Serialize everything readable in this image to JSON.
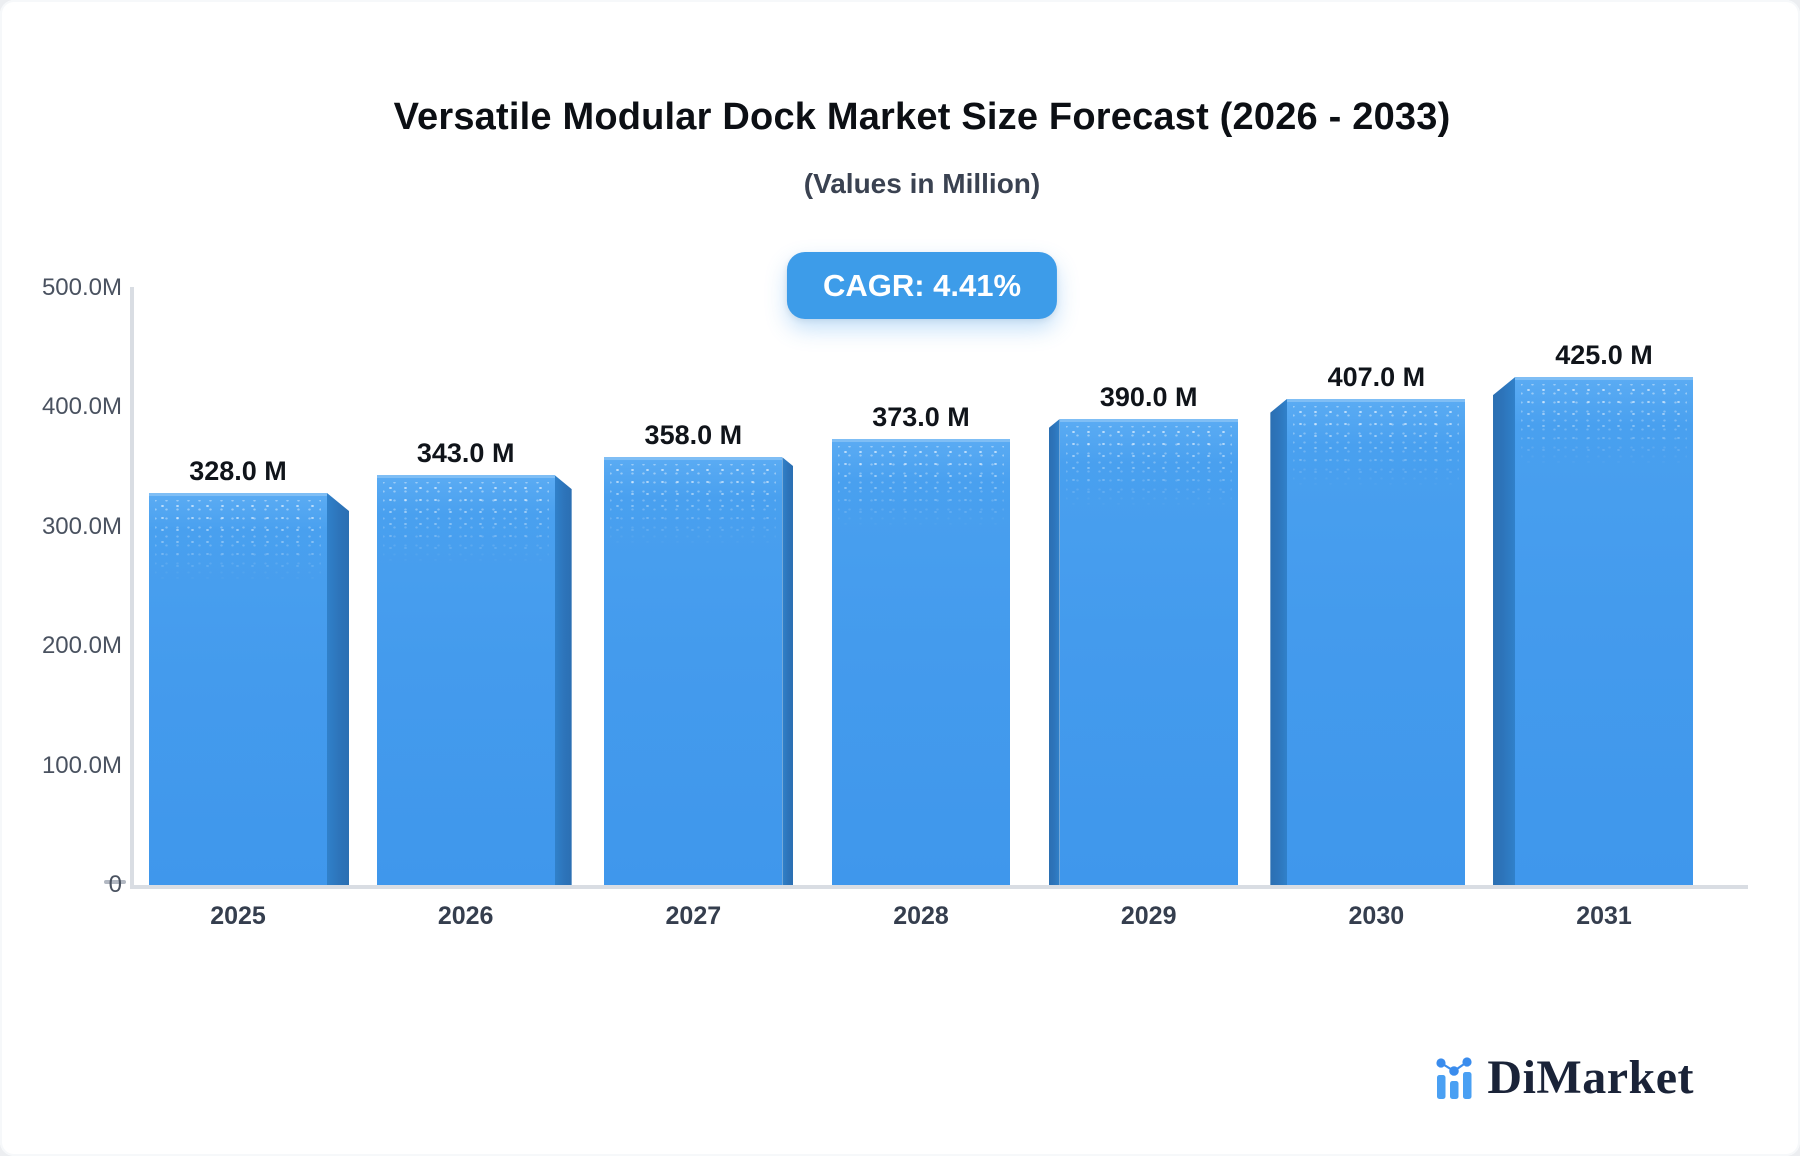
{
  "header": {
    "title": "Versatile Modular Dock Market Size Forecast (2026 - 2033)",
    "subtitle": "(Values in Million)",
    "cagr_badge": "CAGR: 4.41%"
  },
  "brand": {
    "name": "DiMarket",
    "icon": "mini-bar-line-chart-logo"
  },
  "colors": {
    "accent_blue": "#3d9ce9",
    "bar_face": "#459ded",
    "bar_face_top": "#5aabf3",
    "bar_side": "#2d74ba",
    "axis_gray": "#d9dde3",
    "value_label": "#10141a",
    "category_label": "#353e4e",
    "tick_label": "#4a5260",
    "logo_text": "#1a2338",
    "logo_blue": "#4aa0f3"
  },
  "chart_data": {
    "type": "bar",
    "title": "Versatile Modular Dock Market Size Forecast (2026 - 2033)",
    "subtitle": "(Values in Million)",
    "annotation": "CAGR: 4.41%",
    "categories": [
      "2025",
      "2026",
      "2027",
      "2028",
      "2029",
      "2030",
      "2031"
    ],
    "values": [
      328,
      343,
      358,
      373,
      390,
      407,
      425
    ],
    "value_labels": [
      "328.0 M",
      "343.0 M",
      "358.0 M",
      "373.0 M",
      "390.0 M",
      "407.0 M",
      "425.0 M"
    ],
    "unit": "Million",
    "xlabel": "",
    "ylabel": "",
    "ylim": [
      0,
      500
    ],
    "yticks": [
      {
        "value": 500,
        "label": "500.0M"
      },
      {
        "value": 400,
        "label": "400.0M"
      },
      {
        "value": 300,
        "label": "300.0M"
      },
      {
        "value": 200,
        "label": "200.0M"
      },
      {
        "value": 100,
        "label": "100.0M"
      },
      {
        "value": 0,
        "label": "0"
      }
    ],
    "grid": false,
    "legend": false,
    "style": "3d-perspective-bars"
  }
}
